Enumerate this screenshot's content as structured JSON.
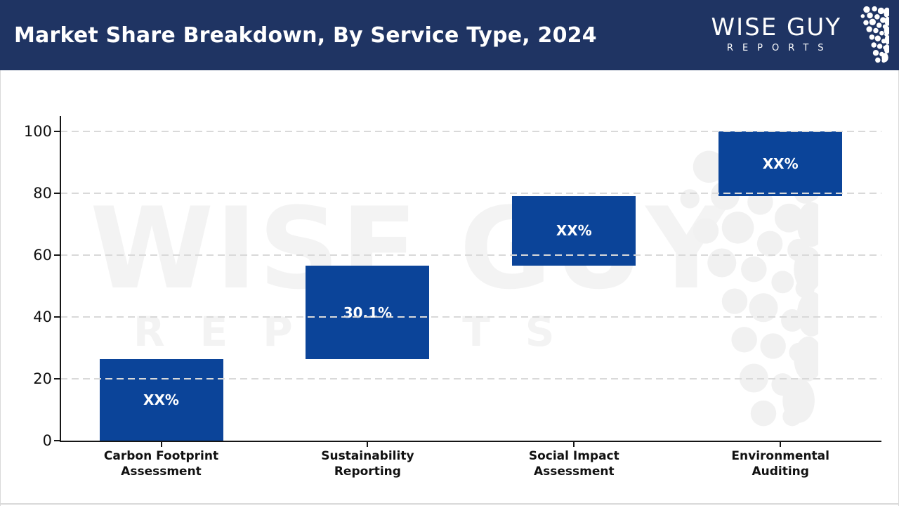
{
  "header": {
    "title": "Market Share Breakdown, By Service Type, 2024",
    "logo": {
      "line1": "WISE GUY",
      "line2": "REPORTS"
    }
  },
  "watermark": {
    "line1": "WISE GUY",
    "line2": "REPORTS"
  },
  "colors": {
    "header_bg": "#1f3463",
    "bar_blue": "#0b4499",
    "grid_gray": "#d9d9d9",
    "axis_black": "#161616",
    "watermark_gray": "#f3f3f3"
  },
  "chart_data": {
    "type": "bar",
    "subtype": "waterfall-style floating bars",
    "title": "Market Share Breakdown, By Service Type, 2024",
    "categories": [
      [
        "Carbon Footprint",
        "Assessment"
      ],
      [
        "Sustainability",
        "Reporting"
      ],
      [
        "Social Impact",
        "Assessment"
      ],
      [
        "Environmental",
        "Auditing"
      ]
    ],
    "segments": [
      {
        "category": "Carbon Footprint Assessment",
        "start": 0,
        "end": 26.4,
        "label": "XX%"
      },
      {
        "category": "Sustainability Reporting",
        "start": 26.4,
        "end": 56.5,
        "label": "30.1%",
        "value": 30.1
      },
      {
        "category": "Social Impact Assessment",
        "start": 56.5,
        "end": 79.2,
        "label": "XX%"
      },
      {
        "category": "Environmental Auditing",
        "start": 79.2,
        "end": 100,
        "label": "XX%"
      }
    ],
    "ylim": [
      0,
      100
    ],
    "yticks": [
      0,
      20,
      40,
      60,
      80,
      100
    ],
    "xlabel": "",
    "ylabel": "",
    "grid": {
      "horizontal": true,
      "style": "dashed",
      "color": "#d9d9d9",
      "drawn_over_bars": true
    },
    "legend": "none",
    "bar_color": "#0b4499",
    "bar_label_color": "#ffffff"
  }
}
